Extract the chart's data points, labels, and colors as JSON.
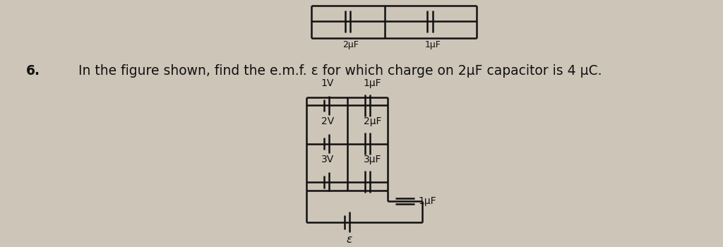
{
  "bg_color": "#cdc5b8",
  "text_color": "#111111",
  "question_number": "6.",
  "question_text": "In the figure shown, find the e.m.f. ε for which charge on 2μF capacitor is 4 μC.",
  "q_fontsize": 13.5,
  "circuit_labels": [
    {
      "volt": "1V",
      "cap": "1μF"
    },
    {
      "volt": "2V",
      "cap": "2μF"
    },
    {
      "volt": "3V",
      "cap": "3μF"
    }
  ],
  "side_cap_label": "1μF",
  "emf_label": "ε",
  "top_caps": [
    "2μF",
    "1μF"
  ]
}
